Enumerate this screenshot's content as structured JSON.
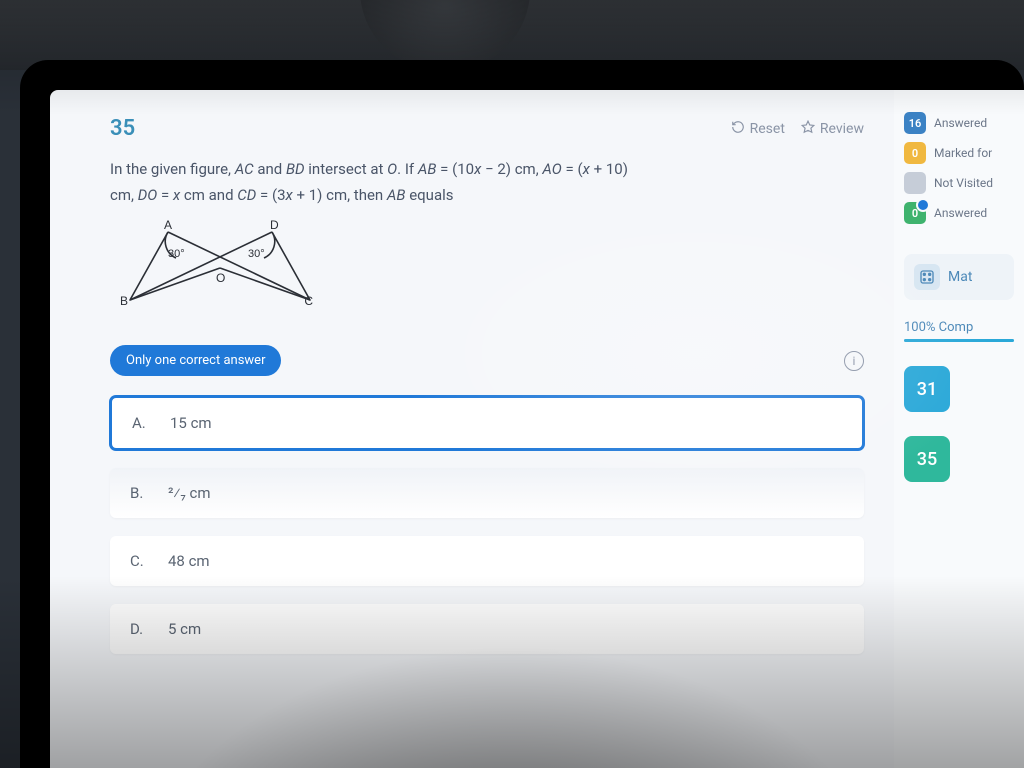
{
  "question": {
    "number": "35",
    "text_line1": "In the given figure, <i>AC</i> and <i>BD</i> intersect at <i>O</i>. If <i>AB</i> = (10<i>x</i> − 2) cm, <i>AO</i> = (<i>x</i> + 10)",
    "text_line2": "cm, <i>DO</i> = <i>x</i> cm and <i>CD</i> = (3<i>x</i> + 1) cm, then <i>AB</i> equals",
    "angle1": "30°",
    "angle2": "30°",
    "labels": {
      "A": "A",
      "B": "B",
      "C": "C",
      "D": "D",
      "O": "O"
    }
  },
  "header_actions": {
    "reset": "Reset",
    "review": "Review"
  },
  "badge": "Only one correct answer",
  "options": [
    {
      "letter": "A.",
      "text": "15 cm",
      "selected": true
    },
    {
      "letter": "B.",
      "text": "²⁄₇ cm",
      "selected": false
    },
    {
      "letter": "C.",
      "text": "48 cm",
      "selected": false
    },
    {
      "letter": "D.",
      "text": "5 cm",
      "selected": false
    }
  ],
  "sidebar": {
    "legend": [
      {
        "count": "16",
        "label": "Answered",
        "colorClass": "sw-blue"
      },
      {
        "count": "0",
        "label": "Marked for",
        "colorClass": "sw-yellow"
      },
      {
        "count": "",
        "label": "Not Visited",
        "colorClass": "sw-grey"
      },
      {
        "count": "0",
        "label": "Answered",
        "colorClass": "sw-green"
      }
    ],
    "section_button": "Mat",
    "progress_label": "100% Comp",
    "qboxes": [
      "31",
      "35"
    ]
  },
  "style": {
    "accent": "#2079d8",
    "teal": "#2aa8d8",
    "text": "#4a5568"
  }
}
